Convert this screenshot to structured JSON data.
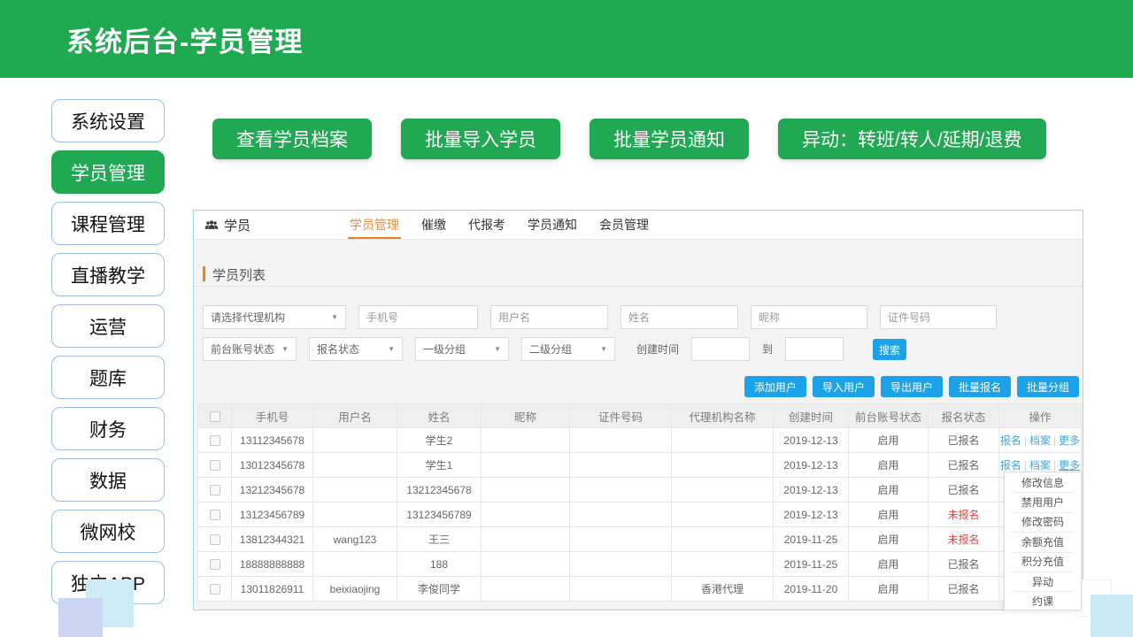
{
  "page": {
    "title": "系统后台-学员管理"
  },
  "colors": {
    "brand_green": "#21A853",
    "button_blue": "#1BA2E9",
    "link_blue": "#3FA9DC",
    "accent_orange": "#EE7E1E",
    "status_red": "#DD4B4B"
  },
  "sidebar": {
    "items": [
      {
        "label": "系统设置",
        "active": false
      },
      {
        "label": "学员管理",
        "active": true
      },
      {
        "label": "课程管理",
        "active": false
      },
      {
        "label": "直播教学",
        "active": false
      },
      {
        "label": "运营",
        "active": false
      },
      {
        "label": "题库",
        "active": false
      },
      {
        "label": "财务",
        "active": false
      },
      {
        "label": "数据",
        "active": false
      },
      {
        "label": "微网校",
        "active": false
      },
      {
        "label": "独立APP",
        "active": false
      }
    ]
  },
  "quick_actions": [
    {
      "label": "查看学员档案"
    },
    {
      "label": "批量导入学员"
    },
    {
      "label": "批量学员通知"
    },
    {
      "label": "异动：转班/转人/延期/退费"
    }
  ],
  "panel": {
    "module_title": "学员",
    "tabs": [
      {
        "label": "学员管理",
        "active": true
      },
      {
        "label": "催缴",
        "active": false
      },
      {
        "label": "代报考",
        "active": false
      },
      {
        "label": "学员通知",
        "active": false
      },
      {
        "label": "会员管理",
        "active": false
      }
    ],
    "section_title": "学员列表",
    "filters": {
      "agency_placeholder": "请选择代理机构",
      "text_inputs": [
        {
          "placeholder": "手机号",
          "width": 135
        },
        {
          "placeholder": "用户名",
          "width": 133
        },
        {
          "placeholder": "姓名",
          "width": 133
        },
        {
          "placeholder": "昵称",
          "width": 132
        },
        {
          "placeholder": "证件号码",
          "width": 132
        }
      ],
      "selects": [
        {
          "label": "前台账号状态"
        },
        {
          "label": "报名状态"
        },
        {
          "label": "一级分组"
        },
        {
          "label": "二级分组"
        }
      ],
      "created_label": "创建时间",
      "to_label": "到",
      "search_label": "搜索"
    },
    "bulk_buttons": [
      {
        "label": "添加用户"
      },
      {
        "label": "导入用户"
      },
      {
        "label": "导出用户"
      },
      {
        "label": "批量报名"
      },
      {
        "label": "批量分组"
      }
    ],
    "table": {
      "headers": [
        {
          "label": "手机号"
        },
        {
          "label": "用户名"
        },
        {
          "label": "姓名"
        },
        {
          "label": "昵称"
        },
        {
          "label": "证件号码"
        },
        {
          "label": "代理机构名称"
        },
        {
          "label": "创建时间"
        },
        {
          "label": "前台账号状态"
        },
        {
          "label": "报名状态"
        },
        {
          "label": "操作"
        }
      ],
      "link_labels": {
        "signup": "报名",
        "archive": "档案",
        "more": "更多",
        "sep": "|"
      },
      "rows": [
        {
          "phone": "13112345678",
          "username": "",
          "name": "学生2",
          "nickname": "",
          "id_no": "",
          "agency": "",
          "created": "2019-12-13",
          "account": "启用",
          "signup": "已报名",
          "signup_red": false,
          "show_links": true,
          "more_underline": false
        },
        {
          "phone": "13012345678",
          "username": "",
          "name": "学生1",
          "nickname": "",
          "id_no": "",
          "agency": "",
          "created": "2019-12-13",
          "account": "启用",
          "signup": "已报名",
          "signup_red": false,
          "show_links": true,
          "more_underline": true
        },
        {
          "phone": "13212345678",
          "username": "",
          "name": "13212345678",
          "nickname": "",
          "id_no": "",
          "agency": "",
          "created": "2019-12-13",
          "account": "启用",
          "signup": "已报名",
          "signup_red": false,
          "show_links": false,
          "more_underline": false
        },
        {
          "phone": "13123456789",
          "username": "",
          "name": "13123456789",
          "nickname": "",
          "id_no": "",
          "agency": "",
          "created": "2019-12-13",
          "account": "启用",
          "signup": "未报名",
          "signup_red": true,
          "show_links": false,
          "more_underline": false
        },
        {
          "phone": "13812344321",
          "username": "wang123",
          "name": "王三",
          "nickname": "",
          "id_no": "",
          "agency": "",
          "created": "2019-11-25",
          "account": "启用",
          "signup": "未报名",
          "signup_red": true,
          "show_links": false,
          "more_underline": false
        },
        {
          "phone": "18888888888",
          "username": "",
          "name": "188",
          "nickname": "",
          "id_no": "",
          "agency": "",
          "created": "2019-11-25",
          "account": "启用",
          "signup": "已报名",
          "signup_red": false,
          "show_links": false,
          "more_underline": false
        },
        {
          "phone": "13011826911",
          "username": "beixiaojing",
          "name": "李俊同学",
          "nickname": "",
          "id_no": "",
          "agency": "香港代理",
          "created": "2019-11-20",
          "account": "启用",
          "signup": "已报名",
          "signup_red": false,
          "show_links": false,
          "more_underline": false
        }
      ]
    },
    "context_menu": {
      "items": [
        {
          "label": "修改信息"
        },
        {
          "label": "禁用用户"
        },
        {
          "label": "修改密码"
        },
        {
          "label": "余额充值"
        },
        {
          "label": "积分充值"
        },
        {
          "label": "异动"
        },
        {
          "label": "约课"
        }
      ]
    }
  }
}
